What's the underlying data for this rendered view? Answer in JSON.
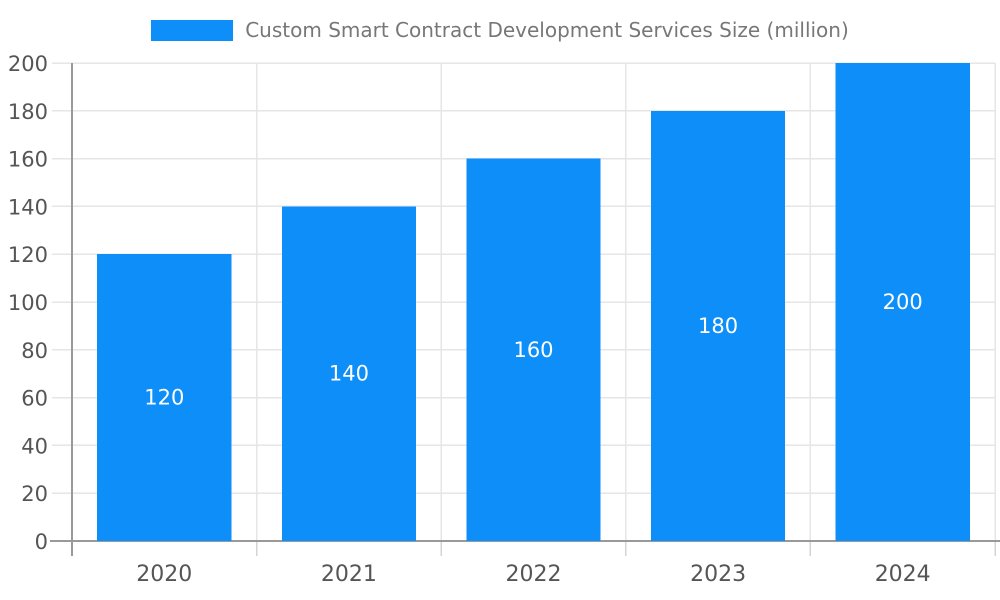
{
  "legend": {
    "label": "Custom Smart Contract Development Services Size (million)"
  },
  "chart_data": {
    "type": "bar",
    "title": "Custom Smart Contract Development Services Size (million)",
    "series_name": "Custom Smart Contract Development Services Size (million)",
    "categories": [
      "2020",
      "2021",
      "2022",
      "2023",
      "2024"
    ],
    "values": [
      120,
      140,
      160,
      180,
      200
    ],
    "bar_value_labels": [
      "120",
      "140",
      "160",
      "180",
      "200"
    ],
    "xlabel": "",
    "ylabel": "",
    "ylim": [
      0,
      200
    ],
    "ytick_step": 20,
    "ytick_labels": [
      "0",
      "20",
      "40",
      "60",
      "80",
      "100",
      "120",
      "140",
      "160",
      "180",
      "200"
    ],
    "grid": true,
    "legend_position": "top"
  },
  "colors": {
    "bar": "#0D8EF9",
    "bar_label": "#FFFFFF",
    "legend_text": "#777777",
    "axis_line": "#999999",
    "tick_label": "#555555",
    "gridline": "#E6E6E6",
    "tick_mark": "#D4D4D4",
    "background": "#FFFFFF"
  }
}
